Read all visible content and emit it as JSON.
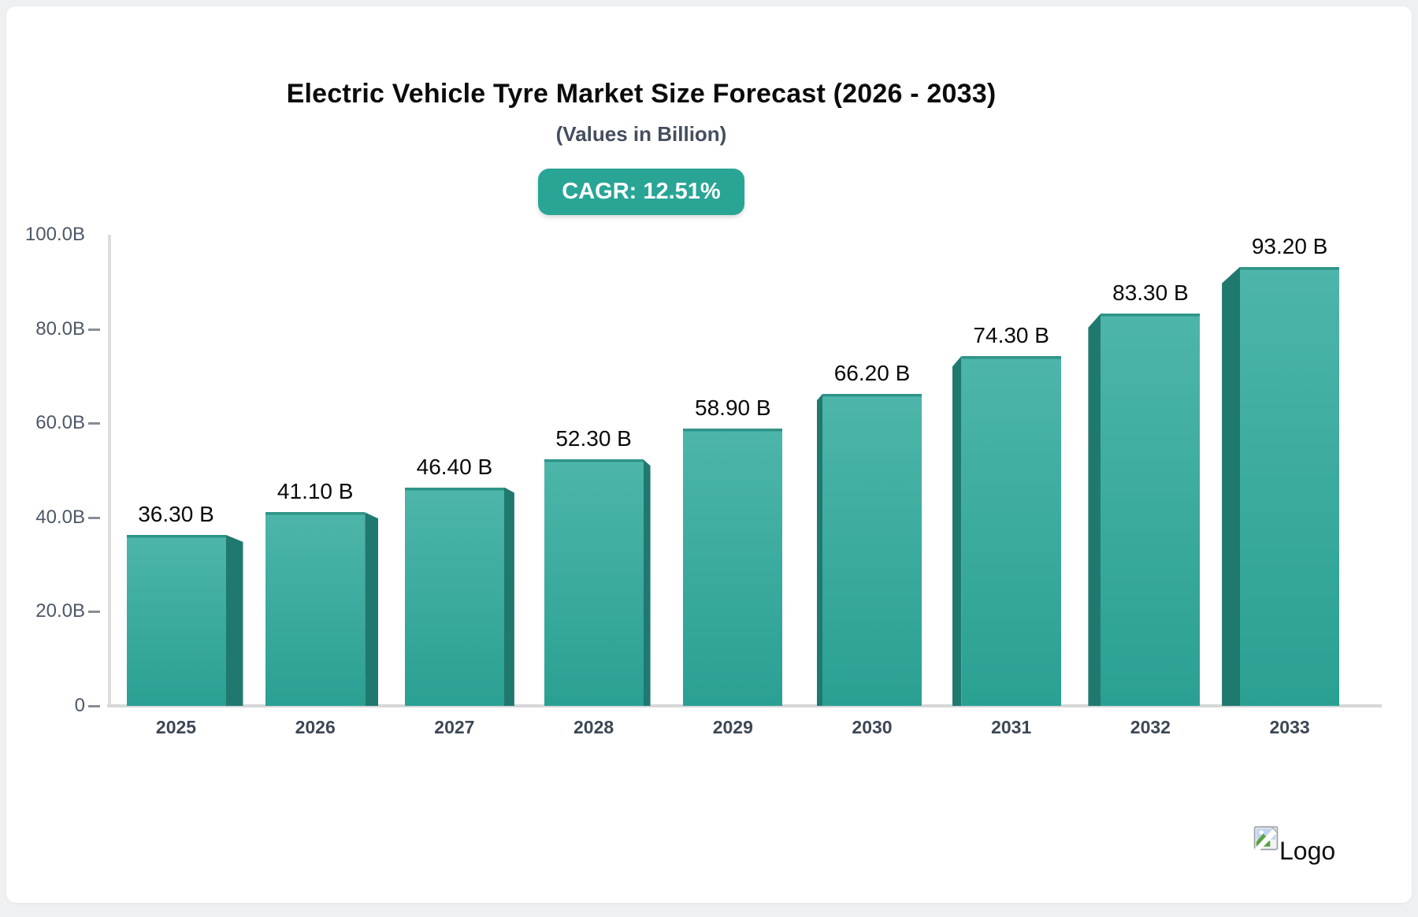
{
  "header": {
    "title": "Electric Vehicle Tyre Market Size Forecast (2026 - 2033)",
    "subtitle": "(Values in Billion)",
    "cagr_badge": "CAGR: 12.51%"
  },
  "chart_data": {
    "type": "bar",
    "title": "Electric Vehicle Tyre Market Size Forecast (2026 - 2033)",
    "subtitle": "(Values in Billion)",
    "unit": "Billion",
    "categories": [
      "2025",
      "2026",
      "2027",
      "2028",
      "2029",
      "2030",
      "2031",
      "2032",
      "2033"
    ],
    "values": [
      36.3,
      41.1,
      46.4,
      52.3,
      58.9,
      66.2,
      74.3,
      83.3,
      93.2
    ],
    "bar_labels": [
      "36.30 B",
      "41.10 B",
      "46.40 B",
      "52.30 B",
      "58.90 B",
      "66.20 B",
      "74.30 B",
      "83.30 B",
      "93.20 B"
    ],
    "y_ticks": [
      {
        "label": "100.0B",
        "value": 100
      },
      {
        "label": "80.0B",
        "value": 80
      },
      {
        "label": "60.0B",
        "value": 60
      },
      {
        "label": "40.0B",
        "value": 40
      },
      {
        "label": "20.0B",
        "value": 20
      },
      {
        "label": "0",
        "value": 0
      }
    ],
    "ylim": [
      0,
      100
    ],
    "xlabel": "",
    "ylabel": "",
    "grid": false,
    "legend": false,
    "annotations": {
      "cagr_text": "CAGR: 12.51%",
      "cagr_value_percent": 12.51
    },
    "style_3d": true,
    "colors": {
      "accent": "#29a596",
      "bar_front_top": "#4db5aa",
      "bar_front_bottom": "#2aa093",
      "bar_top_edge": "#2f9488",
      "bar_side": "#20796f",
      "axis_line": "#dbdddf",
      "tick_label": "#4d5766",
      "x_label": "#3d4754",
      "value_label": "#0a0a0a"
    }
  },
  "logo": {
    "alt_text": "Logo"
  }
}
